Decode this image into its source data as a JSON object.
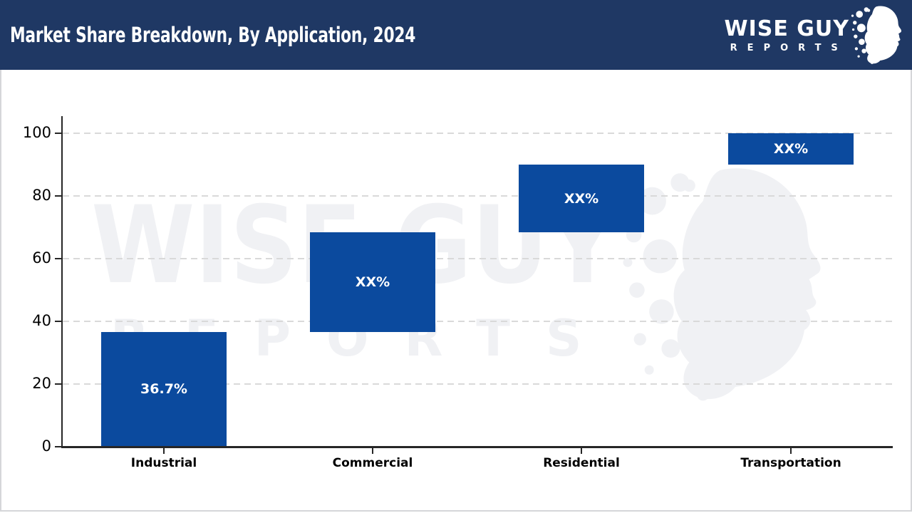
{
  "header": {
    "title": "Market Share Breakdown, By Application, 2024",
    "brand": {
      "name": "WISE GUY",
      "sub": "REPORTS"
    },
    "colors": {
      "background": "#1f3864",
      "text": "#ffffff"
    }
  },
  "watermark": {
    "line1": "WISE GUY",
    "line2": "REPORTS"
  },
  "chart_data": {
    "type": "bar",
    "subtype": "waterfall",
    "title": "Market Share Breakdown, By Application, 2024",
    "xlabel": "",
    "ylabel": "",
    "categories": [
      "Industrial",
      "Commercial",
      "Residential",
      "Transportation"
    ],
    "segments": [
      {
        "category": "Industrial",
        "start": 0,
        "end": 36.7,
        "label": "36.7%"
      },
      {
        "category": "Commercial",
        "start": 36.7,
        "end": 68.3,
        "label": "XX%"
      },
      {
        "category": "Residential",
        "start": 68.3,
        "end": 90,
        "label": "XX%"
      },
      {
        "category": "Transportation",
        "start": 90,
        "end": 100,
        "label": "XX%"
      }
    ],
    "ylim": [
      0,
      100
    ],
    "yticks": [
      0,
      20,
      40,
      60,
      80,
      100
    ],
    "grid": "horizontal-dashed",
    "legend": "none",
    "bar_color": "#0b4a9e",
    "value_label_color": "#ffffff",
    "axis_color": "#262626",
    "grid_color": "#d9d9d9"
  }
}
